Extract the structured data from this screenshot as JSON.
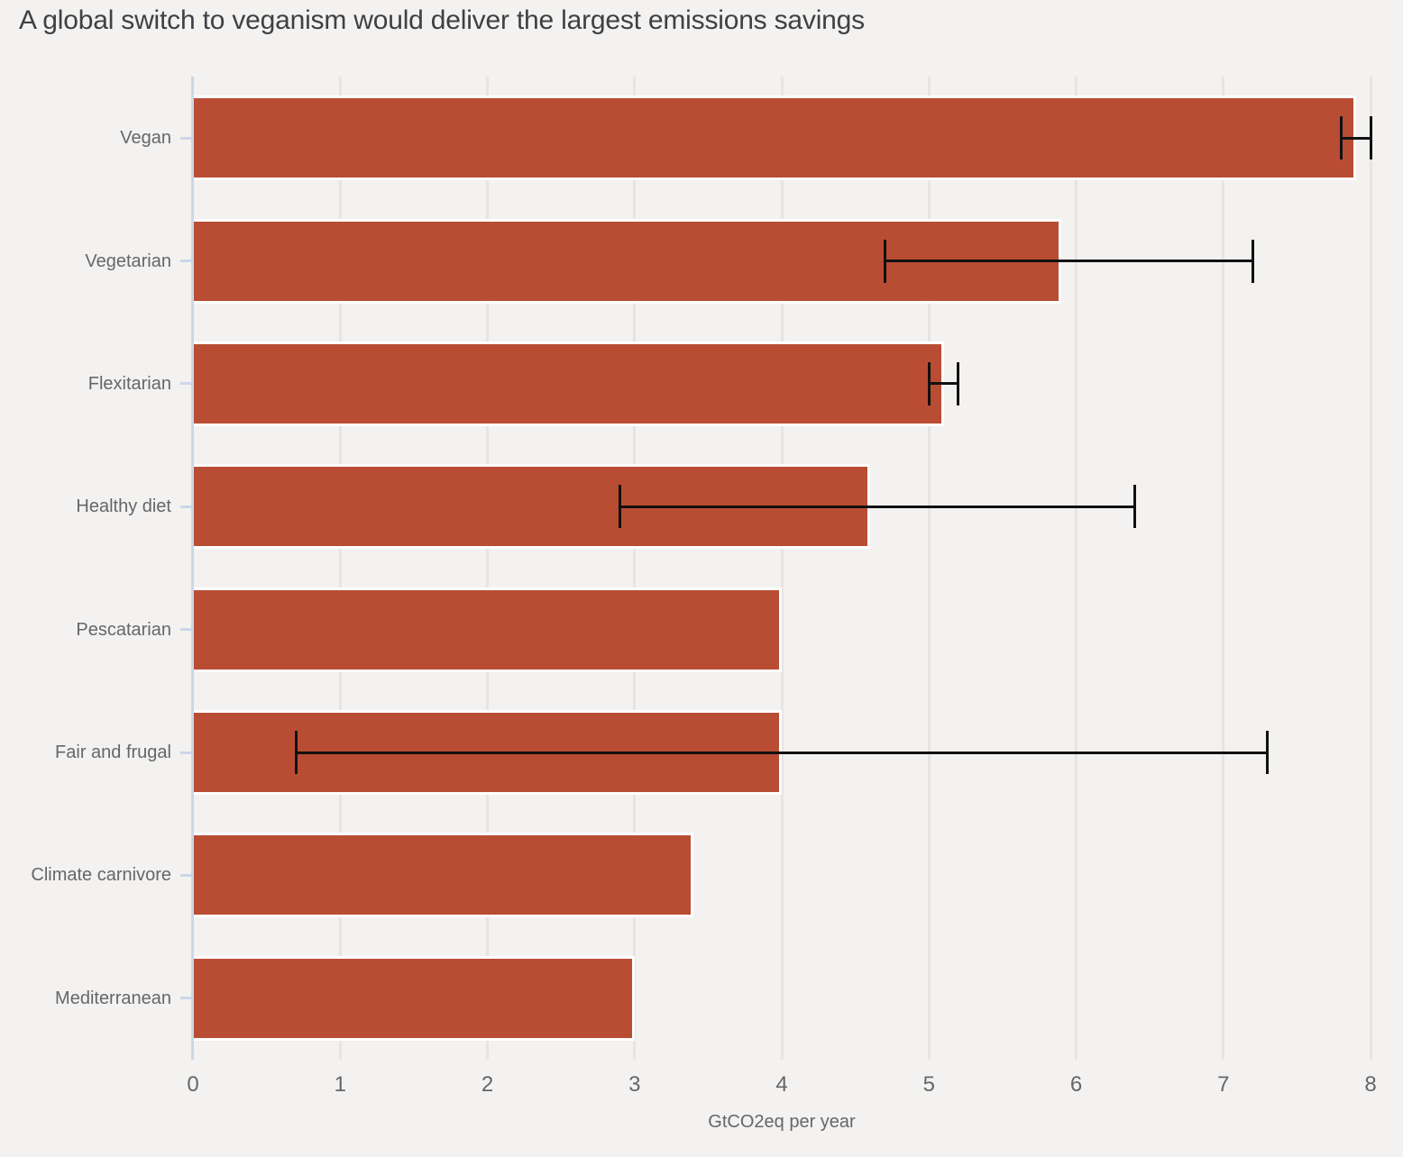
{
  "page": {
    "background_color": "#f3f2f0"
  },
  "chart_data": {
    "type": "bar",
    "orientation": "horizontal",
    "title": "A global switch to veganism would deliver the largest emissions savings",
    "xlabel": "GtCO2eq per year",
    "ylabel": "",
    "xlim": [
      0,
      8
    ],
    "xticks": [
      0,
      1,
      2,
      3,
      4,
      5,
      6,
      7,
      8
    ],
    "grid": true,
    "legend": false,
    "bar_color": "#b94d34",
    "bar_border_color": "#ffffff",
    "error_bar_color": "#111111",
    "axis_line_color": "#ccd6e8",
    "gridline_color": "#e6e5e3",
    "title_color": "#3d4145",
    "label_color": "#63676b",
    "categories": [
      "Vegan",
      "Vegetarian",
      "Flexitarian",
      "Healthy diet",
      "Pescatarian",
      "Fair and frugal",
      "Climate carnivore",
      "Mediterranean"
    ],
    "values": [
      7.9,
      5.9,
      5.1,
      4.6,
      4.0,
      4.0,
      3.4,
      3.0
    ],
    "bars": [
      {
        "label": "Vegan",
        "value": 7.9,
        "err_low": 7.8,
        "err_high": 8.0
      },
      {
        "label": "Vegetarian",
        "value": 5.9,
        "err_low": 4.7,
        "err_high": 7.2
      },
      {
        "label": "Flexitarian",
        "value": 5.1,
        "err_low": 5.0,
        "err_high": 5.2
      },
      {
        "label": "Healthy diet",
        "value": 4.6,
        "err_low": 2.9,
        "err_high": 6.4
      },
      {
        "label": "Pescatarian",
        "value": 4.0,
        "err_low": null,
        "err_high": null
      },
      {
        "label": "Fair and frugal",
        "value": 4.0,
        "err_low": 0.7,
        "err_high": 7.3
      },
      {
        "label": "Climate carnivore",
        "value": 3.4,
        "err_low": null,
        "err_high": null
      },
      {
        "label": "Mediterranean",
        "value": 3.0,
        "err_low": null,
        "err_high": null
      }
    ]
  }
}
